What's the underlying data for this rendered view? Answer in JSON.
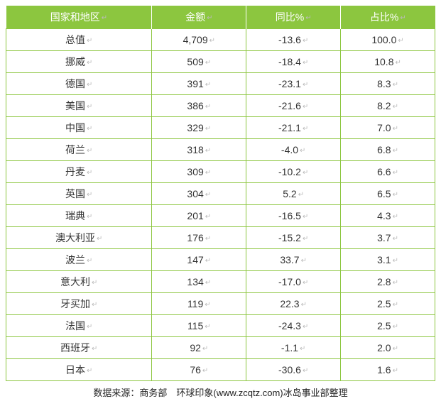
{
  "table": {
    "header_bg": "#8cc63f",
    "header_fg": "#ffffff",
    "border_color": "#8cc63f",
    "cell_fg": "#333333",
    "columns": [
      "国家和地区",
      "金额",
      "同比%",
      "占比%"
    ],
    "col_align": [
      "center",
      "center",
      "center",
      "center"
    ],
    "rows": [
      [
        "总值",
        "4,709",
        "-13.6",
        "100.0"
      ],
      [
        "挪威",
        "509",
        "-18.4",
        "10.8"
      ],
      [
        "德国",
        "391",
        "-23.1",
        "8.3"
      ],
      [
        "美国",
        "386",
        "-21.6",
        "8.2"
      ],
      [
        "中国",
        "329",
        "-21.1",
        "7.0"
      ],
      [
        "荷兰",
        "318",
        "-4.0",
        "6.8"
      ],
      [
        "丹麦",
        "309",
        "-10.2",
        "6.6"
      ],
      [
        "英国",
        "304",
        "5.2",
        "6.5"
      ],
      [
        "瑞典",
        "201",
        "-16.5",
        "4.3"
      ],
      [
        "澳大利亚",
        "176",
        "-15.2",
        "3.7"
      ],
      [
        "波兰",
        "147",
        "33.7",
        "3.1"
      ],
      [
        "意大利",
        "134",
        "-17.0",
        "2.8"
      ],
      [
        "牙买加",
        "119",
        "22.3",
        "2.5"
      ],
      [
        "法国",
        "115",
        "-24.3",
        "2.5"
      ],
      [
        "西班牙",
        "92",
        "-1.1",
        "2.0"
      ],
      [
        "日本",
        "76",
        "-30.6",
        "1.6"
      ]
    ]
  },
  "caption": "数据来源：商务部　环球印象(www.zcqtz.com)冰岛事业部整理"
}
